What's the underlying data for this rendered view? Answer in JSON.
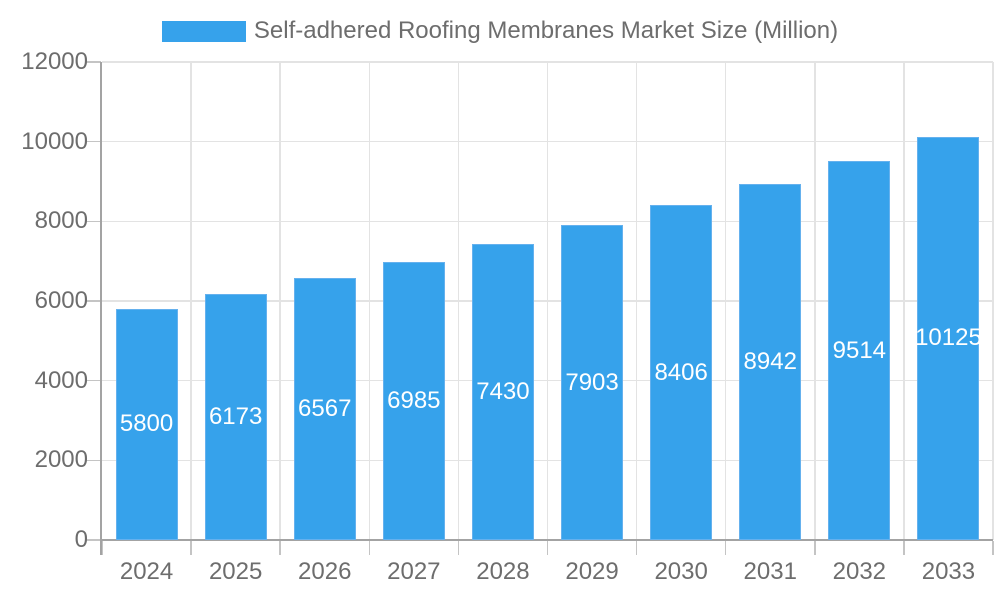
{
  "legend": {
    "label": "Self-adhered Roofing Membranes Market Size (Million)"
  },
  "chart_data": {
    "type": "bar",
    "title": "Self-adhered Roofing Membranes Market Size (Million)",
    "categories": [
      "2024",
      "2025",
      "2026",
      "2027",
      "2028",
      "2029",
      "2030",
      "2031",
      "2032",
      "2033"
    ],
    "values": [
      5800,
      6173,
      6567,
      6985,
      7430,
      7903,
      8406,
      8942,
      9514,
      10125
    ],
    "xlabel": "",
    "ylabel": "",
    "ylim": [
      0,
      12000
    ],
    "yticks": [
      0,
      2000,
      4000,
      6000,
      8000,
      10000,
      12000
    ],
    "grid": true,
    "legend_position": "top",
    "value_labels_inside_bars": true,
    "colors": {
      "bar_fill": "#36a2eb",
      "bar_border": "#65b1ee",
      "value_label": "#ffffff",
      "axis_line": "#a3a3a3",
      "tick_mark": "#c4c4c4",
      "gridline": "#e3e3e3",
      "tick_label": "#6d6d6d",
      "legend_text": "#6d6d6d"
    }
  }
}
